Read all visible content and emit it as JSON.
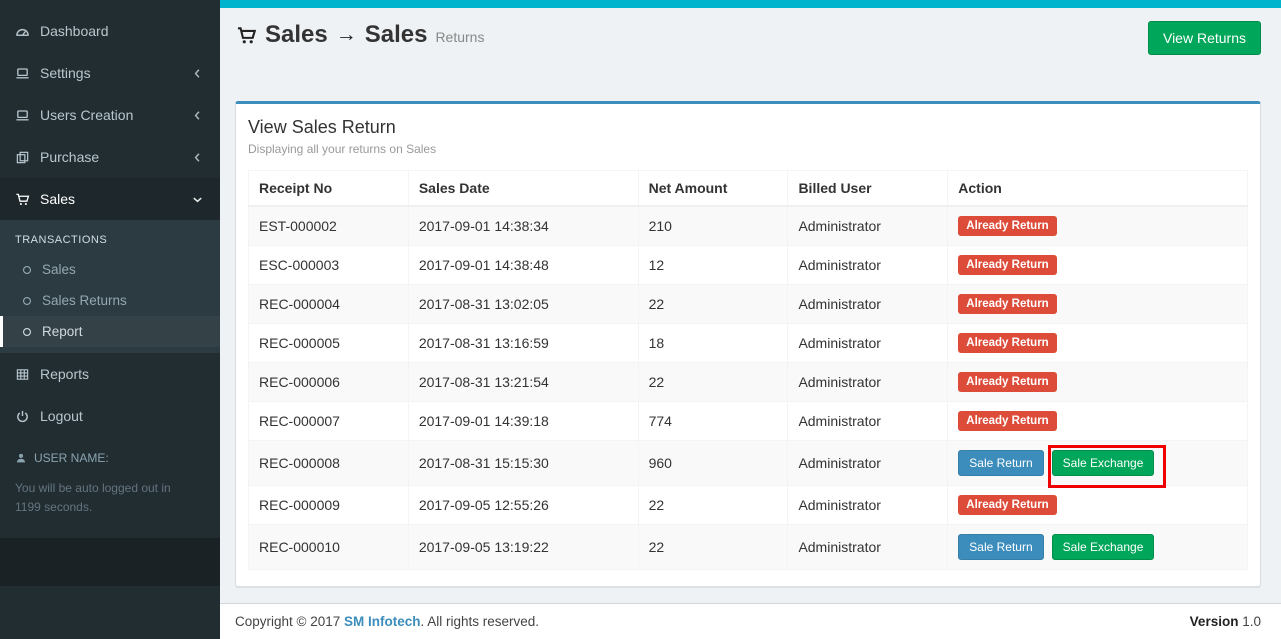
{
  "colors": {
    "sidebar_bg": "#222d32",
    "sidebar_active_bg": "#1e282c",
    "treeview_bg": "#2c3b41",
    "top_strip_teal": "#00b4cd",
    "card_accent_blue": "#3c8dbc",
    "button_green": "#00a65a",
    "button_blue": "#3c8dbc",
    "badge_red": "#dd4b39",
    "annotation_red": "#f00000"
  },
  "sidebar": {
    "items": [
      {
        "label": "Dashboard",
        "icon": "dashboard-icon"
      },
      {
        "label": "Settings",
        "icon": "laptop-icon",
        "chevron": "left"
      },
      {
        "label": "Users Creation",
        "icon": "laptop-icon",
        "chevron": "left"
      },
      {
        "label": "Purchase",
        "icon": "copy-icon",
        "chevron": "left"
      },
      {
        "label": "Sales",
        "icon": "cart-icon",
        "chevron": "down",
        "active": true
      }
    ],
    "section_label": "TRANSACTIONS",
    "sub_items": [
      {
        "label": "Sales"
      },
      {
        "label": "Sales Returns"
      },
      {
        "label": "Report",
        "highlighted": true
      }
    ],
    "bottom_items": [
      {
        "label": "Reports",
        "icon": "table-icon"
      },
      {
        "label": "Logout",
        "icon": "power-icon"
      }
    ],
    "user_label": "USER NAME:",
    "logout_notice": "You will be auto logged out in 1199 seconds."
  },
  "header": {
    "title_primary": "Sales",
    "title_arrow": "→",
    "title_secondary": "Sales",
    "title_sub": "Returns",
    "view_returns_label": "View Returns"
  },
  "card": {
    "title": "View Sales Return",
    "subtitle": "Displaying all your returns on Sales"
  },
  "table": {
    "columns": [
      "Receipt No",
      "Sales Date",
      "Net Amount",
      "Billed User",
      "Action"
    ],
    "rows": [
      {
        "receipt": "EST-000002",
        "date": "2017-09-01 14:38:34",
        "amount": "210",
        "user": "Administrator",
        "actions": [
          {
            "type": "already",
            "label": "Already Return"
          }
        ]
      },
      {
        "receipt": "ESC-000003",
        "date": "2017-09-01 14:38:48",
        "amount": "12",
        "user": "Administrator",
        "actions": [
          {
            "type": "already",
            "label": "Already Return"
          }
        ]
      },
      {
        "receipt": "REC-000004",
        "date": "2017-08-31 13:02:05",
        "amount": "22",
        "user": "Administrator",
        "actions": [
          {
            "type": "already",
            "label": "Already Return"
          }
        ]
      },
      {
        "receipt": "REC-000005",
        "date": "2017-08-31 13:16:59",
        "amount": "18",
        "user": "Administrator",
        "actions": [
          {
            "type": "already",
            "label": "Already Return"
          }
        ]
      },
      {
        "receipt": "REC-000006",
        "date": "2017-08-31 13:21:54",
        "amount": "22",
        "user": "Administrator",
        "actions": [
          {
            "type": "already",
            "label": "Already Return"
          }
        ]
      },
      {
        "receipt": "REC-000007",
        "date": "2017-09-01 14:39:18",
        "amount": "774",
        "user": "Administrator",
        "actions": [
          {
            "type": "already",
            "label": "Already Return"
          }
        ]
      },
      {
        "receipt": "REC-000008",
        "date": "2017-08-31 15:15:30",
        "amount": "960",
        "user": "Administrator",
        "actions": [
          {
            "type": "return",
            "label": "Sale Return"
          },
          {
            "type": "exchange",
            "label": "Sale Exchange",
            "highlighted": true
          }
        ]
      },
      {
        "receipt": "REC-000009",
        "date": "2017-09-05 12:55:26",
        "amount": "22",
        "user": "Administrator",
        "actions": [
          {
            "type": "already",
            "label": "Already Return"
          }
        ]
      },
      {
        "receipt": "REC-000010",
        "date": "2017-09-05 13:19:22",
        "amount": "22",
        "user": "Administrator",
        "actions": [
          {
            "type": "return",
            "label": "Sale Return"
          },
          {
            "type": "exchange",
            "label": "Sale Exchange"
          }
        ]
      }
    ]
  },
  "footer": {
    "copyright_prefix": "Copyright © 2017 ",
    "company": "SM Infotech",
    "copyright_suffix": ". All rights reserved.",
    "version_label": "Version",
    "version_value": "1.0"
  }
}
